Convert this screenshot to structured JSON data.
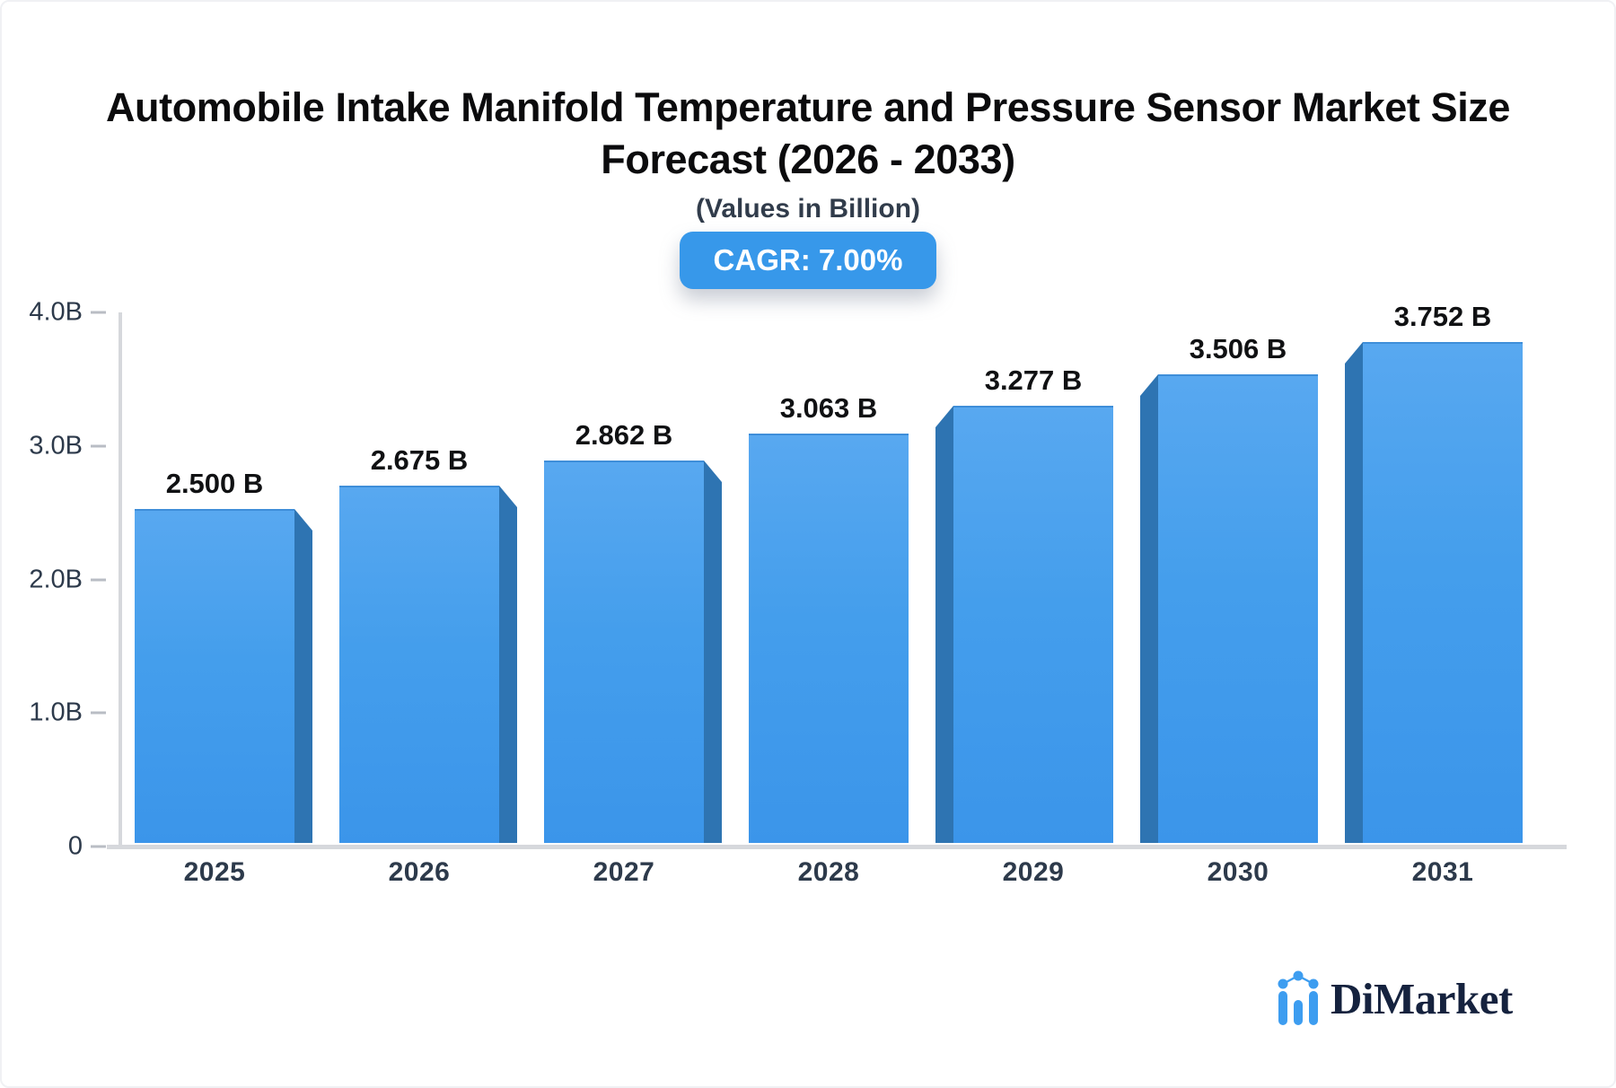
{
  "header": {
    "title_line1": "Automobile Intake Manifold Temperature and Pressure Sensor Market Size",
    "title_line2": "Forecast (2026 - 2033)",
    "subtitle": "(Values in Billion)",
    "cagr_badge": "CAGR: 7.00%"
  },
  "chart_data": {
    "type": "bar",
    "title": "Automobile Intake Manifold Temperature and Pressure Sensor Market Size Forecast (2026 - 2033)",
    "subtitle": "(Values in Billion)",
    "cagr": "7.00%",
    "categories": [
      "2025",
      "2026",
      "2027",
      "2028",
      "2029",
      "2030",
      "2031"
    ],
    "values": [
      2.5,
      2.675,
      2.862,
      3.063,
      3.277,
      3.506,
      3.752
    ],
    "value_labels": [
      "2.500 B",
      "2.675 B",
      "2.862 B",
      "3.063 B",
      "3.277 B",
      "3.506 B",
      "3.752 B"
    ],
    "unit": "Billion",
    "ylim": [
      0,
      4.0
    ],
    "ytick_values": [
      4.0,
      3.0,
      2.0,
      1.0,
      0
    ],
    "ytick_labels": [
      "4.0B",
      "3.0B",
      "2.0B",
      "1.0B",
      "0"
    ],
    "grid": "off",
    "legend": "none",
    "colors": {
      "bar_face": "#3f9ceb",
      "bar_face_light": "#58a8f0",
      "bar_side": "#2e74b2",
      "axis_line": "#d6d8dc",
      "tick_dash": "#b9bdc4",
      "tick_text": "#2d3a4b",
      "badge_bg": "#3798ea",
      "badge_text": "#ffffff"
    }
  },
  "logo": {
    "name": "DiMarket",
    "icon": "bar-chart-logo-icon"
  }
}
